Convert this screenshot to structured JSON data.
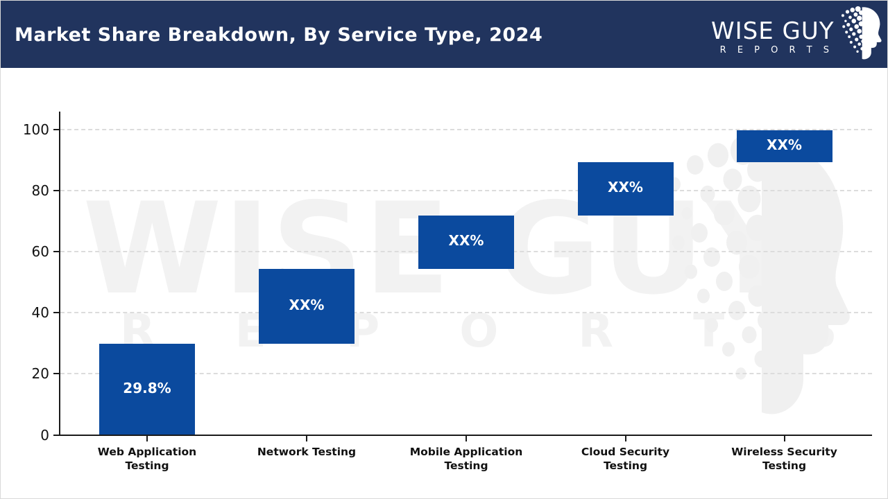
{
  "header": {
    "title": "Market Share Breakdown, By Service Type, 2024",
    "logo": {
      "name": "WISE GUY",
      "sub": "R E P O R T S"
    }
  },
  "watermark": {
    "line1": "WISE GUY",
    "line2": "R E P O R T S"
  },
  "chart_data": {
    "type": "bar",
    "subtype": "waterfall",
    "title": "Market Share Breakdown, By Service Type, 2024",
    "ylabel": "",
    "xlabel": "",
    "ylim": [
      0,
      100
    ],
    "yticks": [
      0,
      20,
      40,
      60,
      80,
      100
    ],
    "grid": "horizontal-dashed",
    "legend": "none",
    "bar_color": "#0b4a9e",
    "label_color": "#ffffff",
    "categories": [
      [
        "Web Application",
        "Testing"
      ],
      [
        "Network Testing"
      ],
      [
        "Mobile Application",
        "Testing"
      ],
      [
        "Cloud Security",
        "Testing"
      ],
      [
        "Wireless Security",
        "Testing"
      ]
    ],
    "bars": [
      {
        "category": "Web Application Testing",
        "start": 0,
        "end": 29.8,
        "label": "29.8%"
      },
      {
        "category": "Network Testing",
        "start": 29.8,
        "end": 54.4,
        "label": "XX%"
      },
      {
        "category": "Mobile Application Testing",
        "start": 54.4,
        "end": 71.9,
        "label": "XX%"
      },
      {
        "category": "Cloud Security Testing",
        "start": 71.9,
        "end": 89.4,
        "label": "XX%"
      },
      {
        "category": "Wireless Security Testing",
        "start": 89.4,
        "end": 99.8,
        "label": "XX%"
      }
    ]
  }
}
